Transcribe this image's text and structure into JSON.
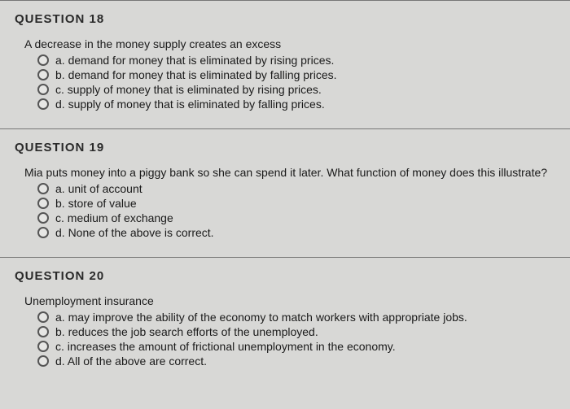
{
  "colors": {
    "page_bg": "#d8d8d6",
    "divider": "#777777",
    "text": "#1a1a1a",
    "title": "#2a2a2a",
    "radio_border": "#555555",
    "radio_bg": "#e6e6e4"
  },
  "typography": {
    "title_fontsize": 15,
    "body_fontsize": 14,
    "font_family": "Arial"
  },
  "questions": [
    {
      "title": "QUESTION 18",
      "stem": "A decrease in the money supply creates an excess",
      "options": [
        "a. demand for money that is eliminated by rising prices.",
        "b. demand for money that is eliminated by falling prices.",
        "c. supply of money that is eliminated by rising prices.",
        "d. supply of money that is eliminated by falling prices."
      ]
    },
    {
      "title": "QUESTION 19",
      "stem": "Mia puts money into a piggy bank so she can spend it later. What function of money does this illustrate?",
      "options": [
        "a. unit of account",
        "b. store of value",
        "c. medium of exchange",
        "d. None of the above is correct."
      ]
    },
    {
      "title": "QUESTION 20",
      "stem": "Unemployment insurance",
      "options": [
        "a. may improve the ability of the economy to match workers with appropriate jobs.",
        "b. reduces the job search efforts of the unemployed.",
        "c. increases the amount of frictional unemployment in the economy.",
        "d. All of the above are correct."
      ]
    }
  ]
}
